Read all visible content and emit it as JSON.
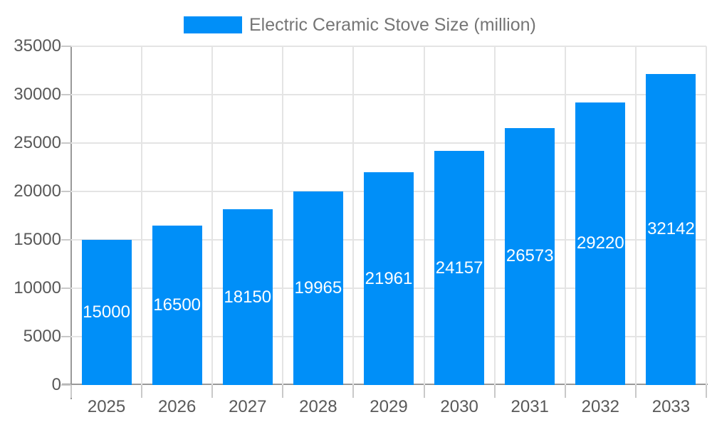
{
  "legend": {
    "label": "Electric Ceramic Stove Size (million)",
    "swatch_color": "#008ff8"
  },
  "chart_data": {
    "type": "bar",
    "title": "Electric Ceramic Stove Size (million)",
    "categories": [
      "2025",
      "2026",
      "2027",
      "2028",
      "2029",
      "2030",
      "2031",
      "2032",
      "2033"
    ],
    "series": [
      {
        "name": "Electric Ceramic Stove Size (million)",
        "values": [
          15000,
          16500,
          18150,
          19965,
          21961,
          24157,
          26573,
          29220,
          32142
        ]
      }
    ],
    "data_labels": [
      "15000",
      "16500",
      "18150",
      "19965",
      "21961",
      "24157",
      "26573",
      "29220",
      "32142"
    ],
    "xlabel": "",
    "ylabel": "",
    "ylim": [
      0,
      35000
    ],
    "yticks": [
      0,
      5000,
      10000,
      15000,
      20000,
      25000,
      30000,
      35000
    ],
    "ytick_labels": [
      "0",
      "5000",
      "10000",
      "15000",
      "20000",
      "25000",
      "30000",
      "35000"
    ],
    "grid": true,
    "legend_position": "top",
    "bar_color": "#008ff8",
    "value_label_color": "#ffffff",
    "axis_text_color": "#595959"
  }
}
